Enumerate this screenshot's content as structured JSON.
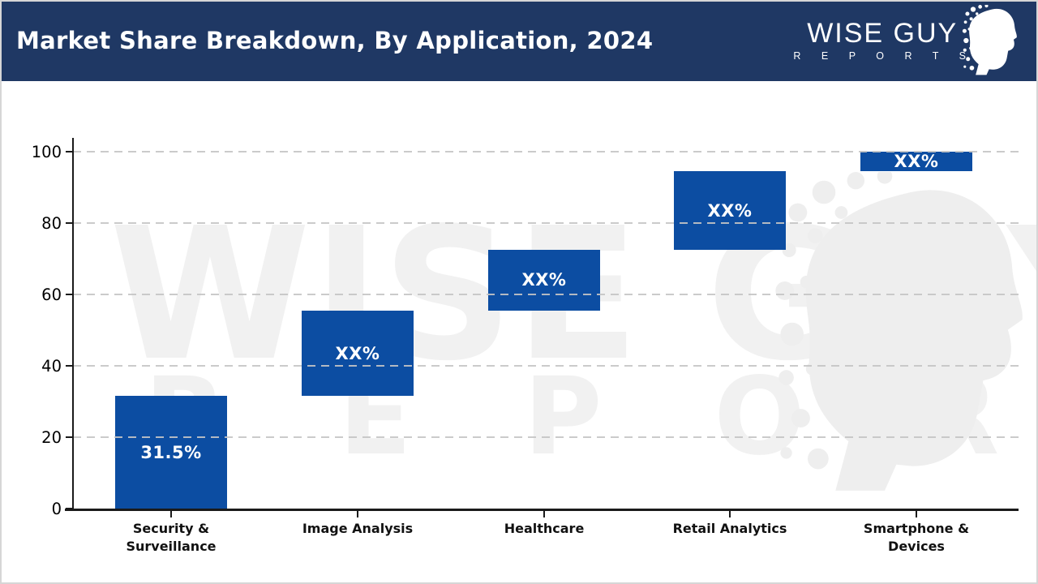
{
  "header": {
    "background_color": "#1f3864",
    "title": "Market Share Breakdown, By Application, 2024",
    "logo": {
      "wordmark": "WISE GUY",
      "subtext": "R E P O R T S"
    }
  },
  "watermark": {
    "wordmark": "WISE GUY",
    "subtext": "R E P O R T S"
  },
  "chart_data": {
    "type": "bar",
    "subtype": "waterfall",
    "title": "Market Share Breakdown, By Application, 2024",
    "categories": [
      "Security &\nSurveillance",
      "Image Analysis",
      "Healthcare",
      "Retail Analytics",
      "Smartphone &\nDevices"
    ],
    "segments": [
      {
        "category": "Security & Surveillance",
        "start": 0,
        "end": 31.5,
        "size": 31.5,
        "label": "31.5%"
      },
      {
        "category": "Image Analysis",
        "start": 31.5,
        "end": 55.5,
        "size": 24.0,
        "label": "XX%"
      },
      {
        "category": "Healthcare",
        "start": 55.5,
        "end": 72.5,
        "size": 17.0,
        "label": "XX%"
      },
      {
        "category": "Retail Analytics",
        "start": 72.5,
        "end": 94.5,
        "size": 22.0,
        "label": "XX%"
      },
      {
        "category": "Smartphone & Devices",
        "start": 94.5,
        "end": 100,
        "size": 5.5,
        "label": "XX%"
      }
    ],
    "xlabel": "",
    "ylabel": "",
    "ylim": [
      0,
      100
    ],
    "yticks": [
      0,
      20,
      40,
      60,
      80,
      100
    ],
    "grid": "horizontal-dashed",
    "legend": "none",
    "bar_color": "#0c4da2",
    "bar_label_color": "#ffffff",
    "axis_color": "#1a1a1a"
  }
}
